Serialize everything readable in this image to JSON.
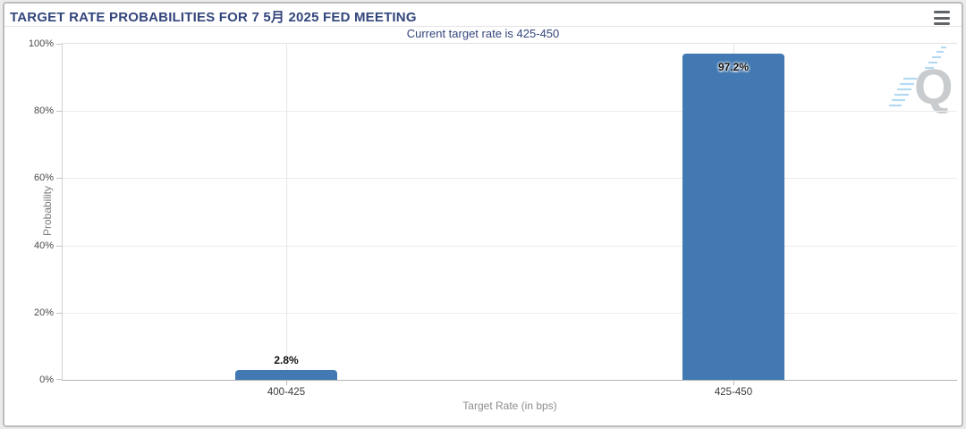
{
  "header": {
    "title": "TARGET RATE PROBABILITIES FOR 7 5月 2025 FED MEETING"
  },
  "toolbar": {
    "menu_icon": "hamburger-menu-icon"
  },
  "watermark": {
    "letter": "Q",
    "icon": "q-logo-watermark",
    "letter_color": "#c9ccce",
    "stripe_color": "#b3d9f2"
  },
  "chart_data": {
    "type": "bar",
    "title": "TARGET RATE PROBABILITIES FOR 7 5月 2025 FED MEETING",
    "subtitle": "Current target rate is 425-450",
    "categories": [
      "400-425",
      "425-450"
    ],
    "values": [
      2.8,
      97.2
    ],
    "value_labels": [
      "2.8%",
      "97.2%"
    ],
    "xlabel": "Target Rate (in bps)",
    "ylabel": "Probability",
    "ylim": [
      0,
      100
    ],
    "ytick_labels": [
      "0%",
      "20%",
      "40%",
      "60%",
      "80%",
      "100%"
    ],
    "grid": true,
    "legend": false,
    "bar_color": "#4279b2",
    "title_color": "#33467c"
  }
}
